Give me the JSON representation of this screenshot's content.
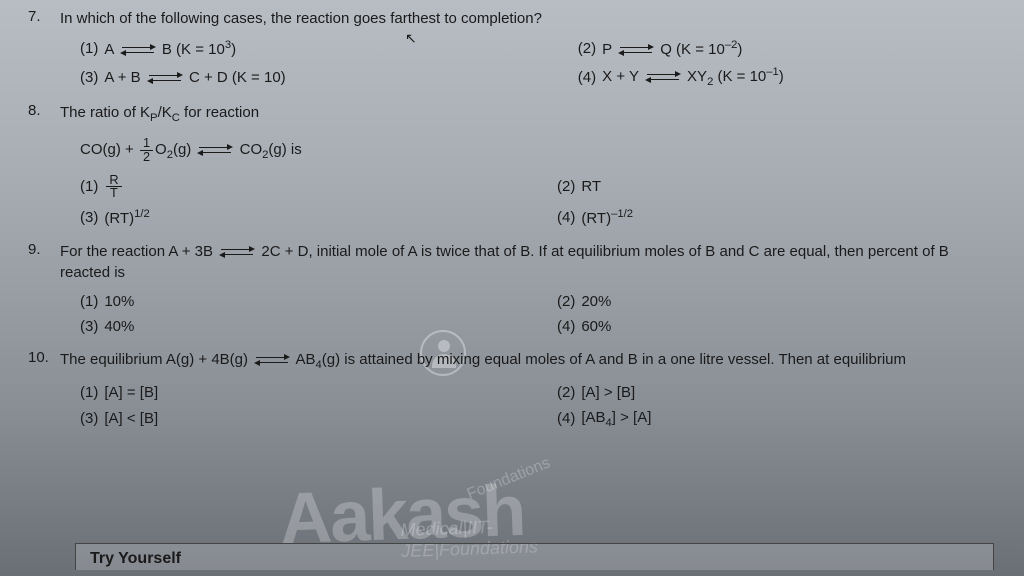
{
  "q7": {
    "number": "7.",
    "stem": "In which of the following cases, the reaction goes farthest to completion?",
    "opts": {
      "a_label": "(1)",
      "a_html": "A <ARROW> B (K = 10<sup>3</sup>)",
      "b_label": "(2)",
      "b_html": "P <ARROW> Q (K = 10<sup>–2</sup>)",
      "c_label": "(3)",
      "c_html": "A + B <ARROW> C + D (K = 10)",
      "d_label": "(4)",
      "d_html": "X + Y <ARROW> XY<sub>2</sub> (K = 10<sup>–1</sup>)"
    }
  },
  "q8": {
    "number": "8.",
    "stem_html": "The ratio of K<sub>P</sub>/K<sub>C</sub> for reaction",
    "eq_html": "CO(g) + <FRAC>1|2</FRAC>O<sub>2</sub>(g) <ARROW> CO<sub>2</sub>(g) is",
    "opts": {
      "a_label": "(1)",
      "a_html": "<FRAC>R|T</FRAC>",
      "b_label": "(2)",
      "b_html": "RT",
      "c_label": "(3)",
      "c_html": "(RT)<sup>1/2</sup>",
      "d_label": "(4)",
      "d_html": "(RT)<sup>–1/2</sup>"
    }
  },
  "q9": {
    "number": "9.",
    "stem_html": "For the reaction A + 3B <ARROW> 2C + D, initial mole of A is twice that of B. If at equilibrium moles of B and C are equal, then percent of B reacted is",
    "opts": {
      "a_label": "(1)",
      "a_text": "10%",
      "b_label": "(2)",
      "b_text": "20%",
      "c_label": "(3)",
      "c_text": "40%",
      "d_label": "(4)",
      "d_text": "60%"
    }
  },
  "q10": {
    "number": "10.",
    "stem_html": "The equilibrium A(g) + 4B(g) <ARROW> AB<sub>4</sub>(g) is attained by mixing equal moles of A and B in a one litre vessel. Then at equilibrium",
    "opts": {
      "a_label": "(1)",
      "a_text": "[A] = [B]",
      "b_label": "(2)",
      "b_text": "[A] > [B]",
      "c_label": "(3)",
      "c_text": "[A] < [B]",
      "d_label": "(4)",
      "d_html": "[AB<sub>4</sub>] > [A]"
    }
  },
  "footer": {
    "try": "Try Yourself"
  },
  "watermark": {
    "main": "Aakash",
    "sub": "Medical|IIT-JEE|Foundations",
    "sub2": "Foundations"
  }
}
